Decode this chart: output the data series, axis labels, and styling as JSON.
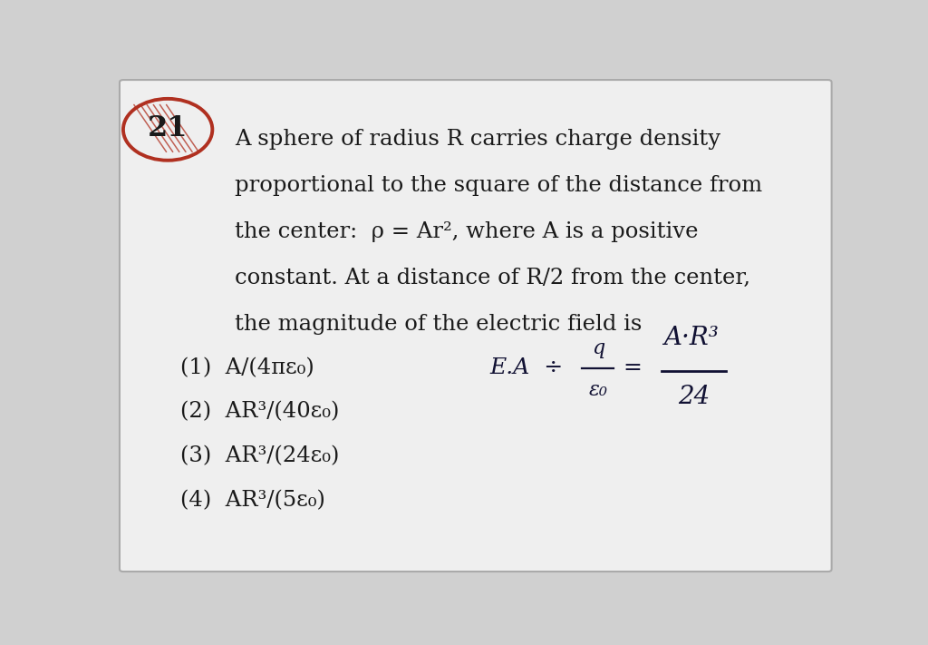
{
  "background_color": "#d0d0d0",
  "card_color": "#efefef",
  "question_number": "21",
  "main_text_lines": [
    "A sphere of radius R carries charge density",
    "proportional to the square of the distance from",
    "the center:  ρ = Ar², where A is a positive",
    "constant. At a distance of R/2 from the center,",
    "the magnitude of the electric field is"
  ],
  "options": [
    "(1)  A/(4πε₀)",
    "(2)  AR³/(40ε₀)",
    "(3)  AR³/(24ε₀)",
    "(4)  AR³/(5ε₀)"
  ],
  "text_color": "#1a1a1a",
  "handwritten_color": "#111133",
  "circle_edge_color": "#b03020",
  "fig_width": 10.24,
  "fig_height": 7.11,
  "dpi": 100
}
